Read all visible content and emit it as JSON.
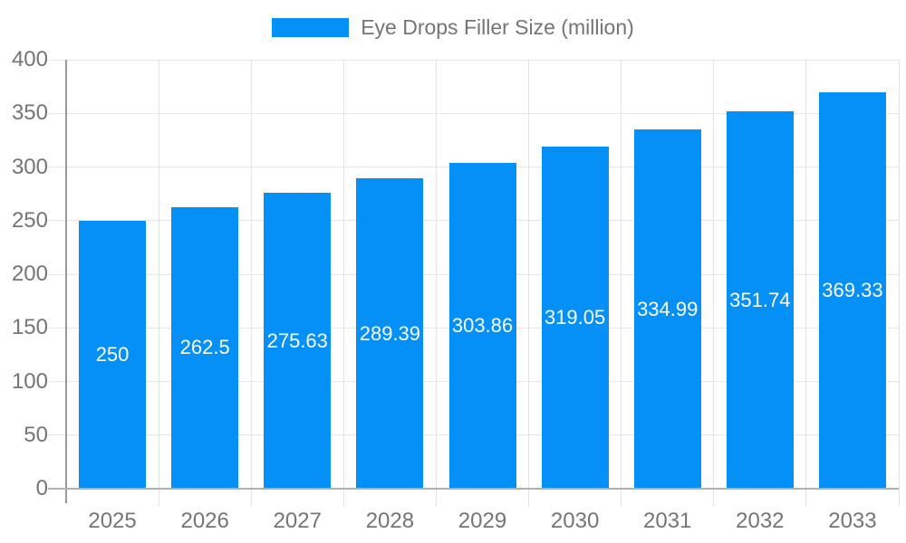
{
  "legend": {
    "label": "Eye Drops Filler Size (million)"
  },
  "chart_data": {
    "type": "bar",
    "title": "Eye Drops Filler Size (million)",
    "categories": [
      "2025",
      "2026",
      "2027",
      "2028",
      "2029",
      "2030",
      "2031",
      "2032",
      "2033"
    ],
    "values": [
      250,
      262.5,
      275.63,
      289.39,
      303.86,
      319.05,
      334.99,
      351.74,
      369.33
    ],
    "value_labels": [
      "250",
      "262.5",
      "275.63",
      "289.39",
      "303.86",
      "319.05",
      "334.99",
      "351.74",
      "369.33"
    ],
    "xlabel": "",
    "ylabel": "",
    "ylim": [
      0,
      400
    ],
    "yticks": [
      0,
      50,
      100,
      150,
      200,
      250,
      300,
      350,
      400
    ],
    "grid": true,
    "legend_position": "top",
    "value_label_position": "inside-center",
    "colors": {
      "bar": "#0590f8",
      "bar_label": "#ffffff",
      "axis_text": "#757575",
      "gridline": "#e6e6e6",
      "axis_line": "#999999",
      "baseline": "#b0b0b0",
      "background": "#ffffff"
    }
  }
}
